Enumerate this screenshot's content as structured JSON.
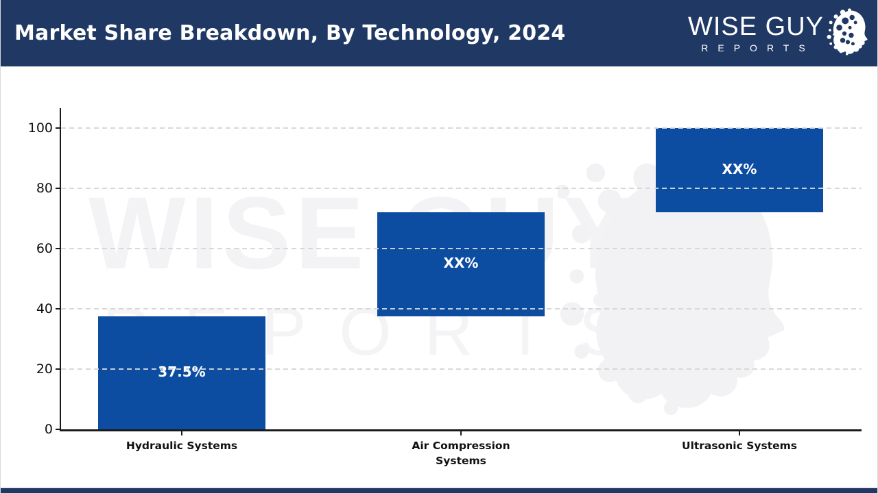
{
  "header": {
    "title": "Market Share Breakdown, By Technology, 2024"
  },
  "logo": {
    "line1": "WISE GUY",
    "line2": "REPORTS"
  },
  "watermark": {
    "line1": "WISE GUY",
    "line2": "REPORTS"
  },
  "colors": {
    "header_bg": "#203864",
    "bar_fill": "#0C4DA2",
    "grid_line": "#D6D6D6",
    "axis": "#1A1A1A",
    "label_on_bar": "#FFFFFF"
  },
  "chart_data": {
    "type": "bar",
    "subtype": "floating-waterfall",
    "title": "Market Share Breakdown, By Technology, 2024",
    "categories": [
      "Hydraulic Systems",
      "Air Compression Systems",
      "Ultrasonic Systems"
    ],
    "segments": [
      {
        "category": "Hydraulic Systems",
        "start": 0,
        "end": 37.5,
        "label": "37.5%"
      },
      {
        "category": "Air Compression Systems",
        "start": 37.5,
        "end": 72,
        "label": "XX%"
      },
      {
        "category": "Ultrasonic Systems",
        "start": 72,
        "end": 100,
        "label": "XX%"
      }
    ],
    "xlabel": "",
    "ylabel": "",
    "ylim": [
      0,
      100
    ],
    "yticks": [
      0,
      20,
      40,
      60,
      80,
      100
    ],
    "grid": "horizontal-dashed",
    "legend": "none",
    "bar_color": "#0C4DA2"
  }
}
